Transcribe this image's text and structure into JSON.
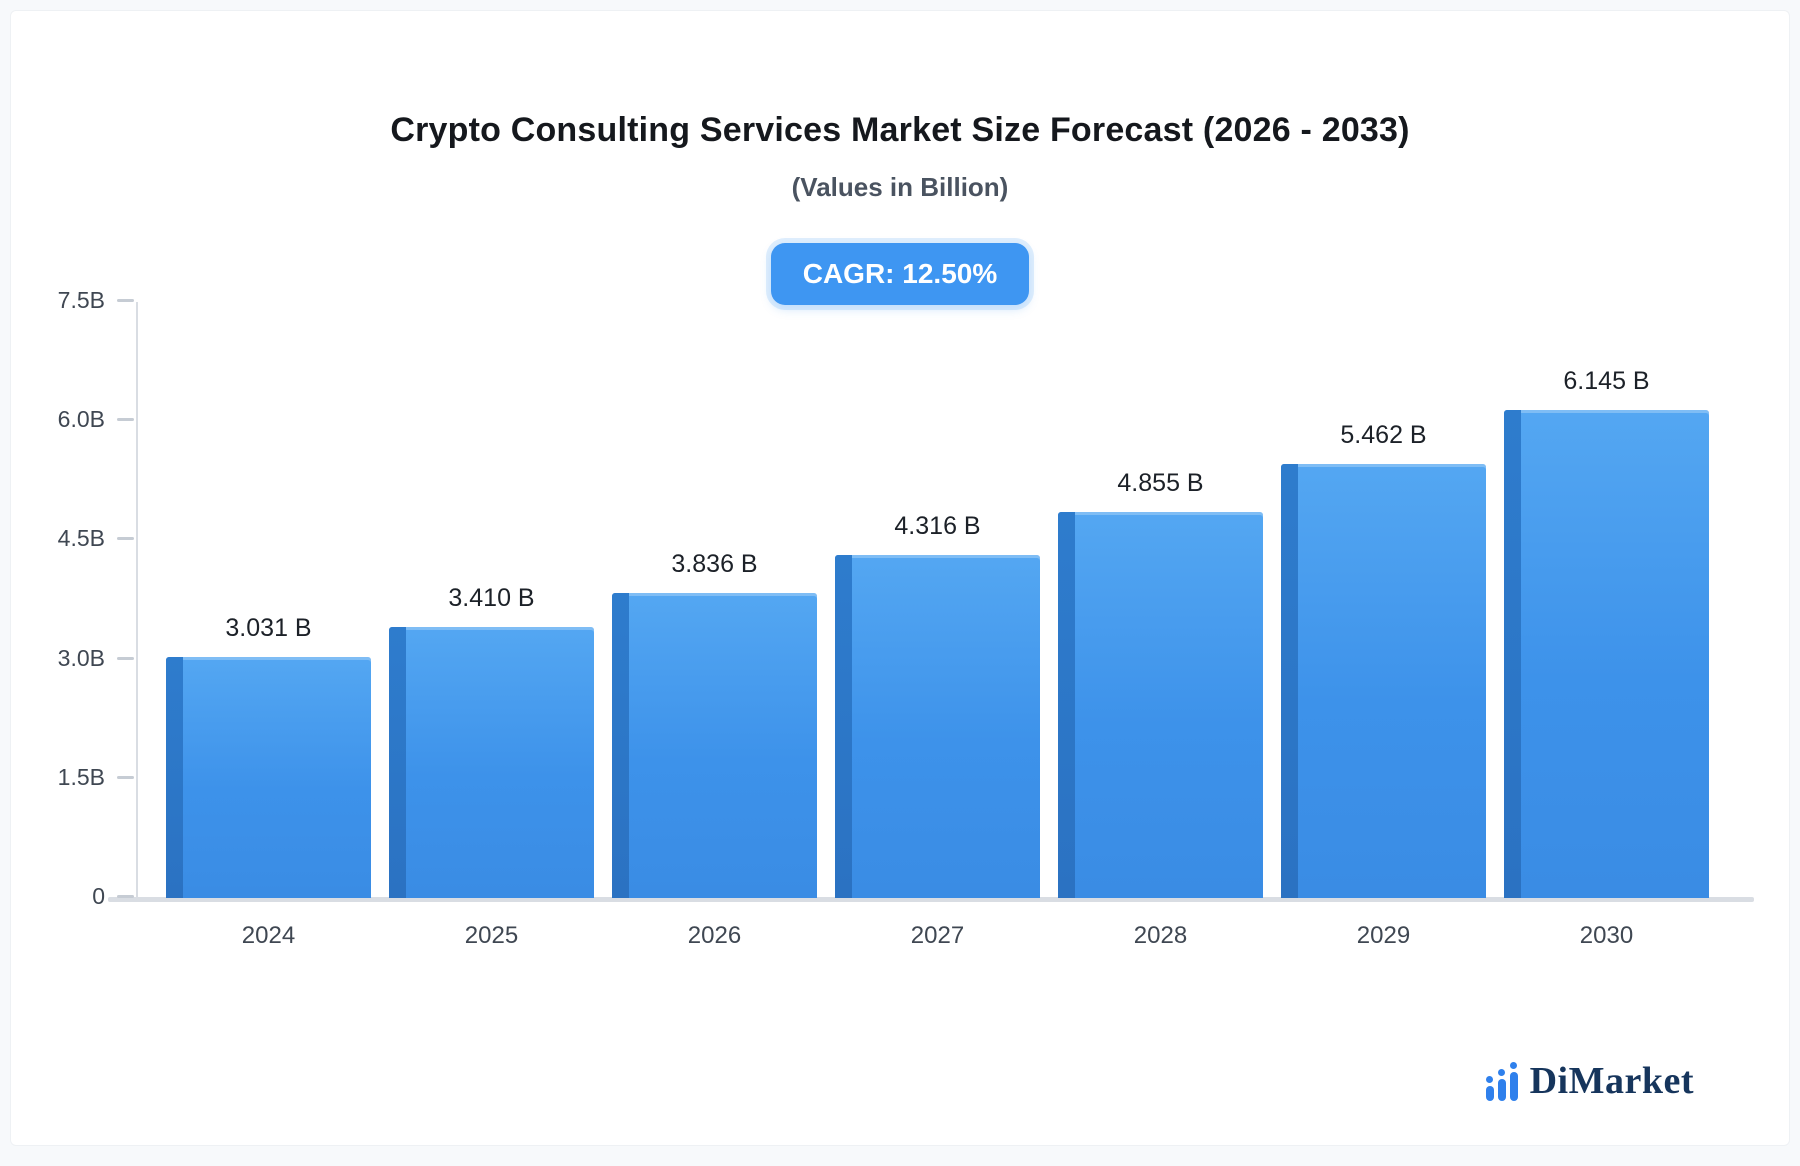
{
  "header": {
    "title": "Crypto Consulting Services Market Size Forecast (2026 - 2033)",
    "subtitle": "(Values in Billion)",
    "cagr_label": "CAGR: 12.50%"
  },
  "brand": {
    "name": "DiMarket"
  },
  "colors": {
    "bar": "#3d92ea",
    "bar_side": "#2b72c2",
    "badge": "#3e96f2",
    "axis": "#d9dde3",
    "brand_blue": "#2f80ec",
    "brand_navy": "#16355c"
  },
  "chart_data": {
    "type": "bar",
    "title": "Crypto Consulting Services Market Size Forecast (2026 - 2033)",
    "subtitle": "(Values in Billion)",
    "annotation": "CAGR: 12.50%",
    "categories": [
      "2024",
      "2025",
      "2026",
      "2027",
      "2028",
      "2029",
      "2030"
    ],
    "values": [
      3.031,
      3.41,
      3.836,
      4.316,
      4.855,
      5.462,
      6.145
    ],
    "value_labels": [
      "3.031 B",
      "3.410 B",
      "3.836 B",
      "4.316 B",
      "4.855 B",
      "5.462 B",
      "6.145 B"
    ],
    "xlabel": "",
    "ylabel": "",
    "ylim": [
      0,
      7.5
    ],
    "yticks": [
      {
        "label": "7.5B",
        "value": 7.5
      },
      {
        "label": "6.0B",
        "value": 6.0
      },
      {
        "label": "4.5B",
        "value": 4.5
      },
      {
        "label": "3.0B",
        "value": 3.0
      },
      {
        "label": "1.5B",
        "value": 1.5
      },
      {
        "label": "0",
        "value": 0
      }
    ],
    "grid": false,
    "legend": false
  }
}
